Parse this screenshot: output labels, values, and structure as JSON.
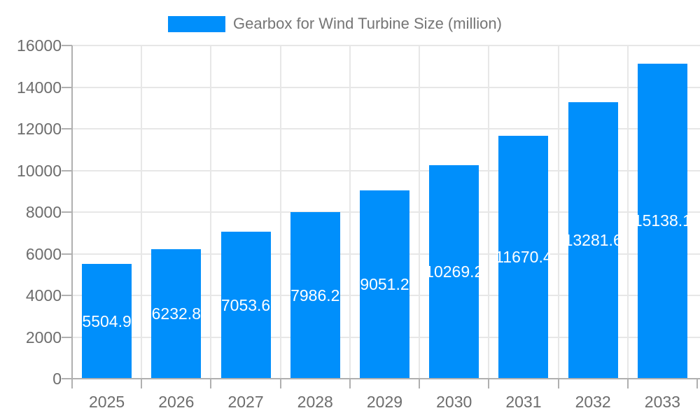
{
  "chart_data": {
    "type": "bar",
    "title": "",
    "legend": {
      "label": "Gearbox for Wind Turbine Size (million)",
      "position": "top",
      "swatch_color": "#008ffb"
    },
    "categories": [
      "2025",
      "2026",
      "2027",
      "2028",
      "2029",
      "2030",
      "2031",
      "2032",
      "2033"
    ],
    "series": [
      {
        "name": "Gearbox for Wind Turbine Size (million)",
        "values": [
          5504.9,
          6232.8,
          7053.6,
          7986.2,
          9051.2,
          10269.2,
          11670.4,
          13281.6,
          15138.1
        ],
        "value_labels": [
          "5504.9",
          "6232.8",
          "7053.6",
          "7986.2",
          "9051.2",
          "10269.2",
          "11670.4",
          "13281.6",
          "15138.1"
        ]
      }
    ],
    "xlabel": "",
    "ylabel": "",
    "ylim": [
      0,
      16000
    ],
    "ytick_step": 2000,
    "ytick_labels": [
      "0",
      "2000",
      "4000",
      "6000",
      "8000",
      "10000",
      "12000",
      "14000",
      "16000"
    ],
    "grid": "both",
    "colors": {
      "bar": "#008ffb",
      "bar_label": "#ffffff",
      "grid_line": "#e7e7e7",
      "axis_line": "#b0b0b0",
      "tick_line": "#b0b0b0",
      "axis_label": "#6d6d6d",
      "legend_text": "#757575",
      "background": "#ffffff"
    }
  }
}
